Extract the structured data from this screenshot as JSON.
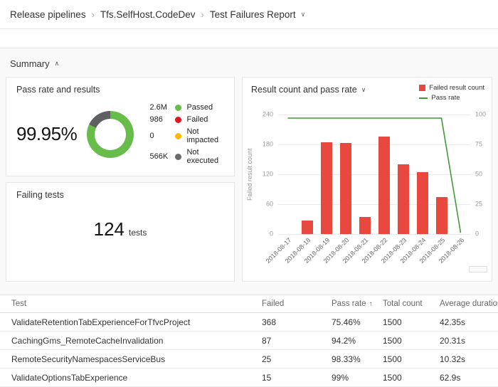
{
  "breadcrumb": {
    "separator": "›",
    "items": [
      {
        "label": "Release pipelines"
      },
      {
        "label": "Tfs.SelfHost.CodeDev"
      },
      {
        "label": "Test Failures Report",
        "has_dropdown": true
      }
    ],
    "dropdown_icon": "∨"
  },
  "summary": {
    "label": "Summary",
    "collapse_icon": "∧"
  },
  "pass_card": {
    "title": "Pass rate and results",
    "pass_rate": "99.95%",
    "legend": [
      {
        "value": "2.6M",
        "label": "Passed",
        "color": "#68bd4a"
      },
      {
        "value": "986",
        "label": "Failed",
        "color": "#e81123"
      },
      {
        "value": "0",
        "label": "Not impacted",
        "color": "#ffb900"
      },
      {
        "value": "566K",
        "label": "Not executed",
        "color": "#6a6a6a"
      }
    ],
    "donut": {
      "segments": [
        {
          "label": "Not executed",
          "pct": 18,
          "color": "#5f6062"
        },
        {
          "label": "Passed",
          "pct": 82,
          "color": "#68bd4a"
        }
      ]
    }
  },
  "failing_card": {
    "title": "Failing tests",
    "count": "124",
    "unit": "tests"
  },
  "chart_card": {
    "title": "Result count and pass rate",
    "dropdown_icon": "∨"
  },
  "chart_data": {
    "type": "bar",
    "title": "Result count and pass rate",
    "categories": [
      "2018-08-17",
      "2018-08-18",
      "2018-08-19",
      "2018-08-20",
      "2018-08-21",
      "2018-08-22",
      "2018-08-23",
      "2018-08-24",
      "2018-08-25",
      "2018-08-26"
    ],
    "series": [
      {
        "name": "Failed result count",
        "type": "bar",
        "axis": "left",
        "color": "#e8483d",
        "values": [
          0,
          27,
          185,
          183,
          35,
          196,
          140,
          124,
          75,
          0
        ]
      },
      {
        "name": "Pass rate",
        "type": "line",
        "axis": "right",
        "color": "#3f9c35",
        "values": [
          97,
          97,
          97,
          97,
          97,
          97,
          97,
          97,
          97,
          1
        ]
      }
    ],
    "y_left": {
      "label": "Failed result count",
      "ticks": [
        0,
        60,
        120,
        180,
        240
      ],
      "max": 240
    },
    "y_right": {
      "ticks": [
        0,
        25,
        50,
        75,
        100
      ],
      "max": 100
    },
    "grid": true,
    "legend_position": "top-right"
  },
  "table": {
    "columns": [
      {
        "label": "Test",
        "key": "test"
      },
      {
        "label": "Failed",
        "key": "failed"
      },
      {
        "label": "Pass rate",
        "key": "pass_rate",
        "sorted": "asc"
      },
      {
        "label": "Total count",
        "key": "total_count"
      },
      {
        "label": "Average duration",
        "key": "average_duration"
      }
    ],
    "sort_icon": "↑",
    "rows": [
      {
        "test": "ValidateRetentionTabExperienceForTfvcProject",
        "failed": "368",
        "pass_rate": "75.46%",
        "total_count": "1500",
        "average_duration": "42.35s"
      },
      {
        "test": "CachingGms_RemoteCacheInvalidation",
        "failed": "87",
        "pass_rate": "94.2%",
        "total_count": "1500",
        "average_duration": "20.31s"
      },
      {
        "test": "RemoteSecurityNamespacesServiceBus",
        "failed": "25",
        "pass_rate": "98.33%",
        "total_count": "1500",
        "average_duration": "10.32s"
      },
      {
        "test": "ValidateOptionsTabExperience",
        "failed": "15",
        "pass_rate": "99%",
        "total_count": "1500",
        "average_duration": "62.9s"
      }
    ]
  }
}
